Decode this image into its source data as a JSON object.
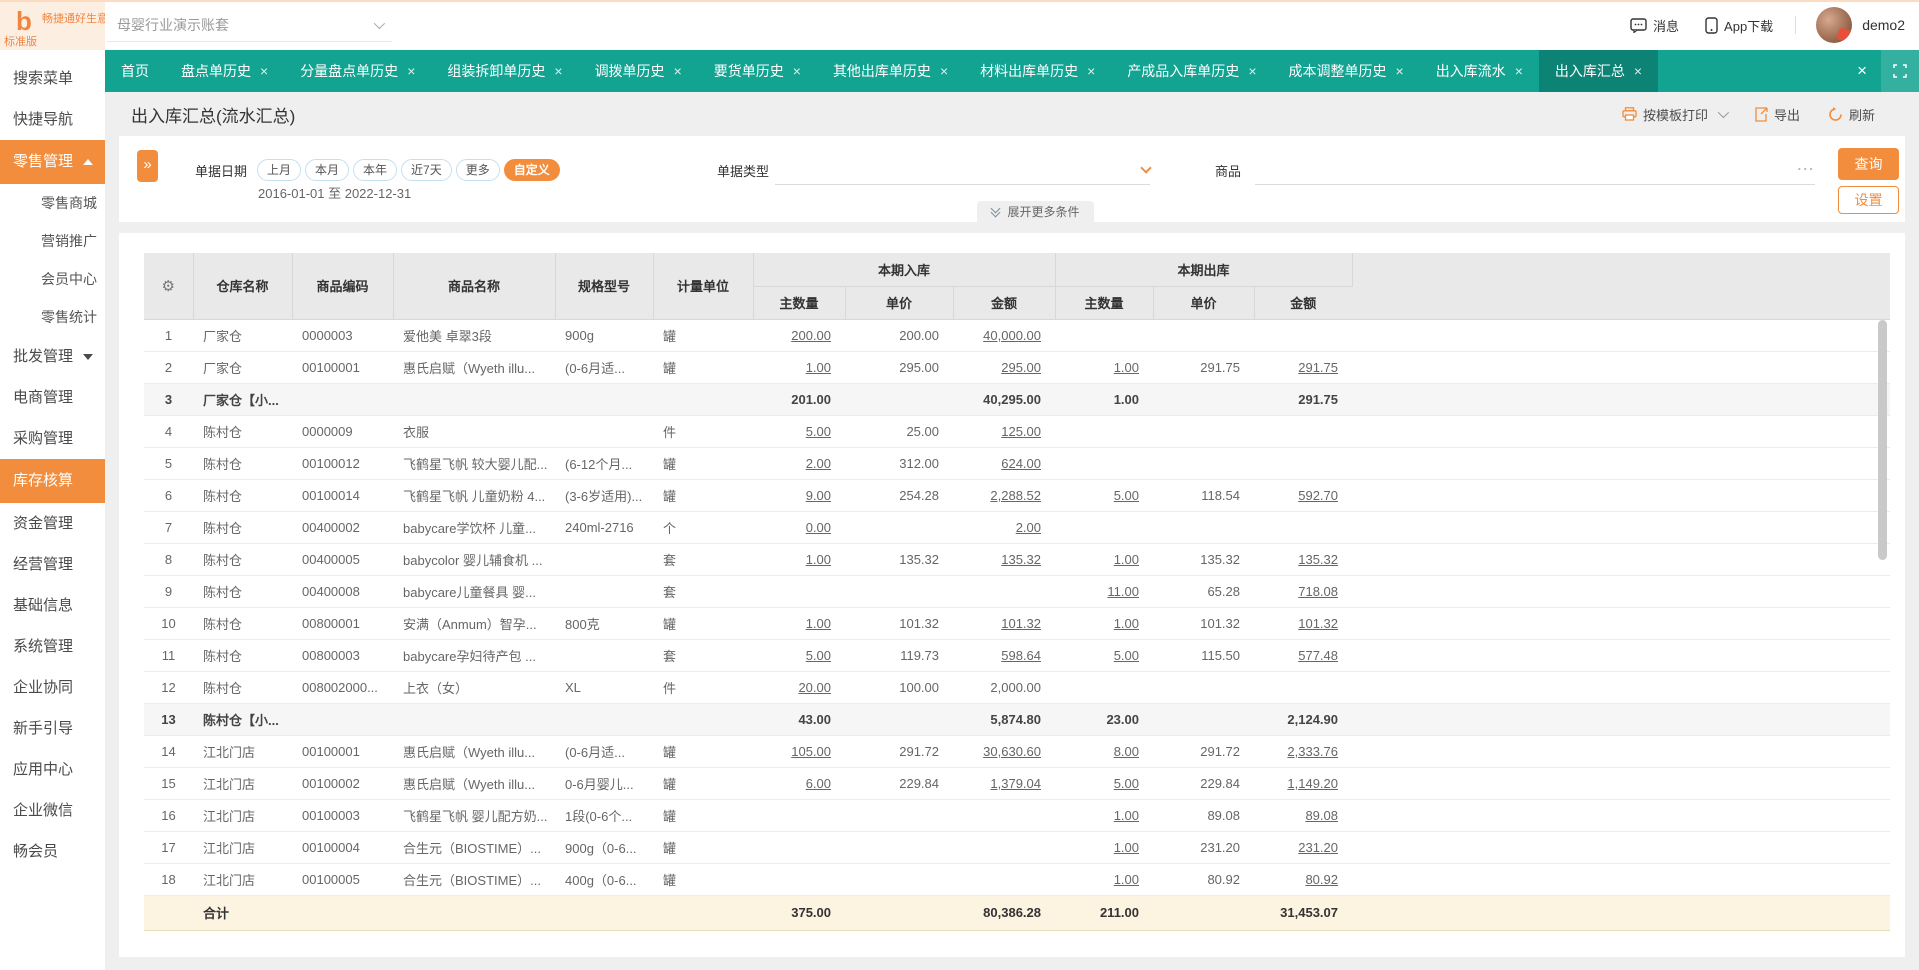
{
  "brand": {
    "logo_text": "畅捷通好生意",
    "edition": "标准版"
  },
  "topbar": {
    "account_set": "母婴行业演示账套",
    "messages": "消息",
    "app_download": "App下载",
    "username": "demo2"
  },
  "sidebar": {
    "items": [
      {
        "label": "搜索菜单",
        "type": "main"
      },
      {
        "label": "快捷导航",
        "type": "main"
      },
      {
        "label": "零售管理",
        "type": "active",
        "arrow": "up"
      },
      {
        "label": "零售商城",
        "type": "sub"
      },
      {
        "label": "营销推广",
        "type": "sub"
      },
      {
        "label": "会员中心",
        "type": "sub"
      },
      {
        "label": "零售统计",
        "type": "sub"
      },
      {
        "label": "批发管理",
        "type": "main",
        "arrow": "down"
      },
      {
        "label": "电商管理",
        "type": "main"
      },
      {
        "label": "采购管理",
        "type": "main"
      },
      {
        "label": "库存核算",
        "type": "active"
      },
      {
        "label": "资金管理",
        "type": "main"
      },
      {
        "label": "经营管理",
        "type": "main"
      },
      {
        "label": "基础信息",
        "type": "main"
      },
      {
        "label": "系统管理",
        "type": "main"
      },
      {
        "label": "企业协同",
        "type": "main"
      },
      {
        "label": "新手引导",
        "type": "main"
      },
      {
        "label": "应用中心",
        "type": "main"
      },
      {
        "label": "企业微信",
        "type": "main"
      },
      {
        "label": "畅会员",
        "type": "main"
      }
    ]
  },
  "tabs": [
    {
      "label": "首页",
      "closable": false,
      "active": false
    },
    {
      "label": "盘点单历史",
      "closable": true,
      "active": false
    },
    {
      "label": "分量盘点单历史",
      "closable": true,
      "active": false
    },
    {
      "label": "组装拆卸单历史",
      "closable": true,
      "active": false
    },
    {
      "label": "调拨单历史",
      "closable": true,
      "active": false
    },
    {
      "label": "要货单历史",
      "closable": true,
      "active": false
    },
    {
      "label": "其他出库单历史",
      "closable": true,
      "active": false
    },
    {
      "label": "材料出库单历史",
      "closable": true,
      "active": false
    },
    {
      "label": "产成品入库单历史",
      "closable": true,
      "active": false
    },
    {
      "label": "成本调整单历史",
      "closable": true,
      "active": false
    },
    {
      "label": "出入库流水",
      "closable": true,
      "active": false
    },
    {
      "label": "出入库汇总",
      "closable": true,
      "active": true
    }
  ],
  "page": {
    "title": "出入库汇总(流水汇总)",
    "print_label": "按模板打印",
    "export_label": "导出",
    "refresh_label": "刷新"
  },
  "filters": {
    "date_label": "单据日期",
    "date_options": [
      "上月",
      "本月",
      "本年",
      "近7天",
      "更多"
    ],
    "date_custom": "自定义",
    "date_range": "2016-01-01 至 2022-12-31",
    "doc_type_label": "单据类型",
    "product_label": "商品",
    "product_more": "...",
    "search_label": "查询",
    "settings_label": "设置",
    "expand_label": "展开更多条件"
  },
  "table": {
    "columns": [
      "仓库名称",
      "商品编码",
      "商品名称",
      "规格型号",
      "计量单位"
    ],
    "group_in": "本期入库",
    "group_out": "本期出库",
    "sub_columns": [
      "主数量",
      "单价",
      "金额"
    ],
    "rows": [
      {
        "no": "1",
        "wh": "厂家仓",
        "code": "0000003",
        "name": "爱他美 卓翠3段",
        "spec": "900g",
        "unit": "罐",
        "iq": "200.00",
        "ip": "200.00",
        "ia": "40,000.00",
        "oq": "",
        "op": "",
        "oa": "",
        "type": "data"
      },
      {
        "no": "2",
        "wh": "厂家仓",
        "code": "00100001",
        "name": "惠氏启赋（Wyeth illu...",
        "spec": "(0-6月适...",
        "unit": "罐",
        "iq": "1.00",
        "ip": "295.00",
        "ia": "295.00",
        "oq": "1.00",
        "op": "291.75",
        "oa": "291.75",
        "type": "data"
      },
      {
        "no": "3",
        "wh": "厂家仓【小...",
        "code": "",
        "name": "",
        "spec": "",
        "unit": "",
        "iq": "201.00",
        "ip": "",
        "ia": "40,295.00",
        "oq": "1.00",
        "op": "",
        "oa": "291.75",
        "type": "subtotal"
      },
      {
        "no": "4",
        "wh": "陈村仓",
        "code": "0000009",
        "name": "衣服",
        "spec": "",
        "unit": "件",
        "iq": "5.00",
        "ip": "25.00",
        "ia": "125.00",
        "oq": "",
        "op": "",
        "oa": "",
        "type": "data"
      },
      {
        "no": "5",
        "wh": "陈村仓",
        "code": "00100012",
        "name": "飞鹤星飞帆 较大婴儿配...",
        "spec": "(6-12个月...",
        "unit": "罐",
        "iq": "2.00",
        "ip": "312.00",
        "ia": "624.00",
        "oq": "",
        "op": "",
        "oa": "",
        "type": "data"
      },
      {
        "no": "6",
        "wh": "陈村仓",
        "code": "00100014",
        "name": "飞鹤星飞帆 儿童奶粉 4...",
        "spec": "(3-6岁适用)...",
        "unit": "罐",
        "iq": "9.00",
        "ip": "254.28",
        "ia": "2,288.52",
        "oq": "5.00",
        "op": "118.54",
        "oa": "592.70",
        "type": "data"
      },
      {
        "no": "7",
        "wh": "陈村仓",
        "code": "00400002",
        "name": "babycare学饮杯 儿童...",
        "spec": "240ml-2716",
        "unit": "个",
        "iq": "0.00",
        "ip": "",
        "ia": "2.00",
        "oq": "",
        "op": "",
        "oa": "",
        "type": "data"
      },
      {
        "no": "8",
        "wh": "陈村仓",
        "code": "00400005",
        "name": "babycolor 婴儿辅食机 ...",
        "spec": "",
        "unit": "套",
        "iq": "1.00",
        "ip": "135.32",
        "ia": "135.32",
        "oq": "1.00",
        "op": "135.32",
        "oa": "135.32",
        "type": "data"
      },
      {
        "no": "9",
        "wh": "陈村仓",
        "code": "00400008",
        "name": "babycare儿童餐具 婴...",
        "spec": "",
        "unit": "套",
        "iq": "",
        "ip": "",
        "ia": "",
        "oq": "11.00",
        "op": "65.28",
        "oa": "718.08",
        "type": "data"
      },
      {
        "no": "10",
        "wh": "陈村仓",
        "code": "00800001",
        "name": "安满（Anmum）智孕...",
        "spec": "800克",
        "unit": "罐",
        "iq": "1.00",
        "ip": "101.32",
        "ia": "101.32",
        "oq": "1.00",
        "op": "101.32",
        "oa": "101.32",
        "type": "data"
      },
      {
        "no": "11",
        "wh": "陈村仓",
        "code": "00800003",
        "name": "babycare孕妇待产包 ...",
        "spec": "",
        "unit": "套",
        "iq": "5.00",
        "ip": "119.73",
        "ia": "598.64",
        "oq": "5.00",
        "op": "115.50",
        "oa": "577.48",
        "type": "data"
      },
      {
        "no": "12",
        "wh": "陈村仓",
        "code": "008002000...",
        "name": "上衣（女）",
        "spec": "XL",
        "unit": "件",
        "iq": "20.00",
        "ip": "100.00",
        "ia": "2,000.00",
        "oq": "",
        "op": "",
        "oa": "",
        "type": "data"
      },
      {
        "no": "13",
        "wh": "陈村仓【小...",
        "code": "",
        "name": "",
        "spec": "",
        "unit": "",
        "iq": "43.00",
        "ip": "",
        "ia": "5,874.80",
        "oq": "23.00",
        "op": "",
        "oa": "2,124.90",
        "type": "subtotal"
      },
      {
        "no": "14",
        "wh": "江北门店",
        "code": "00100001",
        "name": "惠氏启赋（Wyeth illu...",
        "spec": "(0-6月适...",
        "unit": "罐",
        "iq": "105.00",
        "ip": "291.72",
        "ia": "30,630.60",
        "oq": "8.00",
        "op": "291.72",
        "oa": "2,333.76",
        "type": "data"
      },
      {
        "no": "15",
        "wh": "江北门店",
        "code": "00100002",
        "name": "惠氏启赋（Wyeth illu...",
        "spec": "0-6月婴儿...",
        "unit": "罐",
        "iq": "6.00",
        "ip": "229.84",
        "ia": "1,379.04",
        "oq": "5.00",
        "op": "229.84",
        "oa": "1,149.20",
        "type": "data"
      },
      {
        "no": "16",
        "wh": "江北门店",
        "code": "00100003",
        "name": "飞鹤星飞帆 婴儿配方奶...",
        "spec": "1段(0-6个...",
        "unit": "罐",
        "iq": "",
        "ip": "",
        "ia": "",
        "oq": "1.00",
        "op": "89.08",
        "oa": "89.08",
        "type": "data"
      },
      {
        "no": "17",
        "wh": "江北门店",
        "code": "00100004",
        "name": "合生元（BIOSTIME）...",
        "spec": "900g（0-6...",
        "unit": "罐",
        "iq": "",
        "ip": "",
        "ia": "",
        "oq": "1.00",
        "op": "231.20",
        "oa": "231.20",
        "type": "data"
      },
      {
        "no": "18",
        "wh": "江北门店",
        "code": "00100005",
        "name": "合生元（BIOSTIME）...",
        "spec": "400g（0-6...",
        "unit": "罐",
        "iq": "",
        "ip": "",
        "ia": "",
        "oq": "1.00",
        "op": "80.92",
        "oa": "80.92",
        "type": "data"
      }
    ],
    "total": {
      "label": "合计",
      "iq": "375.00",
      "ia": "80,386.28",
      "oq": "211.00",
      "oa": "31,453.07"
    },
    "no_link": [
      "11:ia"
    ]
  }
}
